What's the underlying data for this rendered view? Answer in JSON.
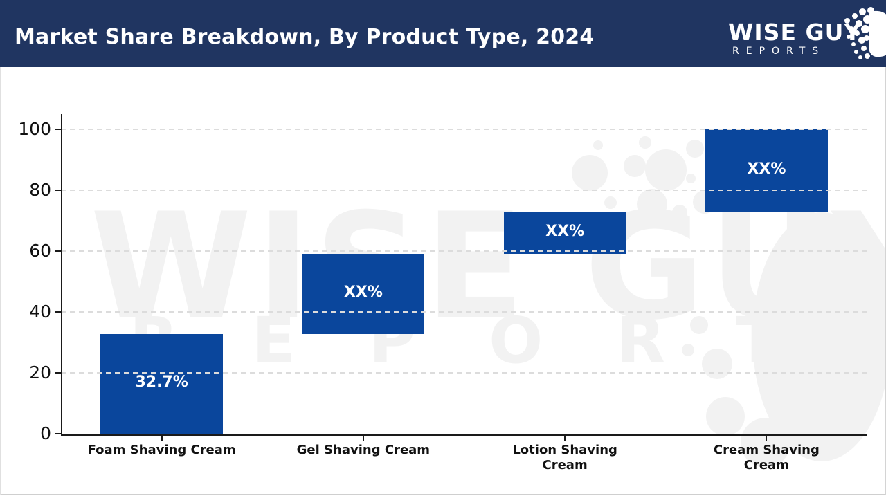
{
  "header": {
    "title": "Market Share Breakdown, By Product Type, 2024"
  },
  "logo": {
    "name": "WISE GUY",
    "sub": "REPORTS",
    "icon": "dotted-head-profile-icon"
  },
  "watermark": {
    "line1": "WISE GUY",
    "line2": "REPORTS"
  },
  "chart_data": {
    "type": "bar",
    "subtype": "floating-waterfall",
    "title": "Market Share Breakdown, By Product Type, 2024",
    "categories": [
      "Foam Shaving Cream",
      "Gel Shaving Cream",
      "Lotion Shaving Cream",
      "Cream Shaving Cream"
    ],
    "bars": [
      {
        "category": "Foam Shaving Cream",
        "start": 0,
        "end": 32.7,
        "label": "32.7%"
      },
      {
        "category": "Gel Shaving Cream",
        "start": 32.7,
        "end": 59.1,
        "label": "XX%"
      },
      {
        "category": "Lotion Shaving Cream",
        "start": 59.1,
        "end": 72.7,
        "label": "XX%"
      },
      {
        "category": "Cream Shaving Cream",
        "start": 72.7,
        "end": 100.0,
        "label": "XX%"
      }
    ],
    "yticks": [
      0,
      20,
      40,
      60,
      80,
      100
    ],
    "ylim": [
      0,
      105
    ],
    "xlabel": "",
    "ylabel": "",
    "grid": "horizontal-dashed",
    "legend": "none",
    "colors": {
      "bar": "#0a469c",
      "bar_label": "#ffffff",
      "gridline": "#dcdcdc",
      "axis": "#1a1a1a",
      "tick_label": "#111111",
      "header_bg": "#203561",
      "watermark": "#f2f2f2"
    }
  }
}
